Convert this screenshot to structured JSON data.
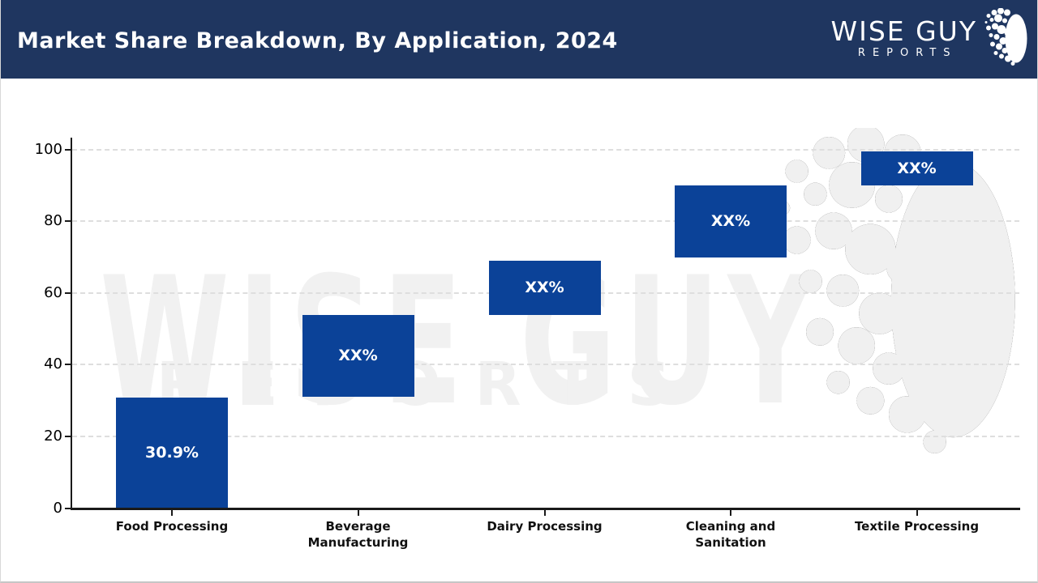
{
  "header": {
    "title": "Market Share Breakdown, By Application, 2024",
    "logo": {
      "name": "WISE GUY",
      "tagline": "REPORTS"
    }
  },
  "watermark": {
    "title": "WISE GUY",
    "tagline": "REPORTS"
  },
  "colors": {
    "header_bg": "#1f3660",
    "bar": "#0b4298",
    "value_label": "#ffffff",
    "grid": "#dedede",
    "axis": "#1a1a1a",
    "watermark": "#f1f1f1"
  },
  "chart_data": {
    "type": "bar",
    "variant": "floating-waterfall",
    "title": "Market Share Breakdown, By Application, 2024",
    "categories": [
      "Food Processing",
      "Beverage Manufacturing",
      "Dairy Processing",
      "Cleaning and Sanitation",
      "Textile Processing"
    ],
    "series": [
      {
        "name": "Market Share (%)",
        "bar_labels": [
          "30.9%",
          "XX%",
          "XX%",
          "XX%",
          "XX%"
        ],
        "bar_ranges": [
          [
            0,
            30.9
          ],
          [
            31,
            54
          ],
          [
            54,
            69
          ],
          [
            70,
            90
          ],
          [
            90,
            99.5
          ]
        ],
        "known_values": {
          "Food Processing": 30.9
        }
      }
    ],
    "xlabel": "",
    "ylabel": "",
    "yticks": [
      0,
      20,
      40,
      60,
      80,
      100
    ],
    "ylim": [
      0,
      105
    ],
    "grid": "horizontal-dashed",
    "legend": "none"
  }
}
